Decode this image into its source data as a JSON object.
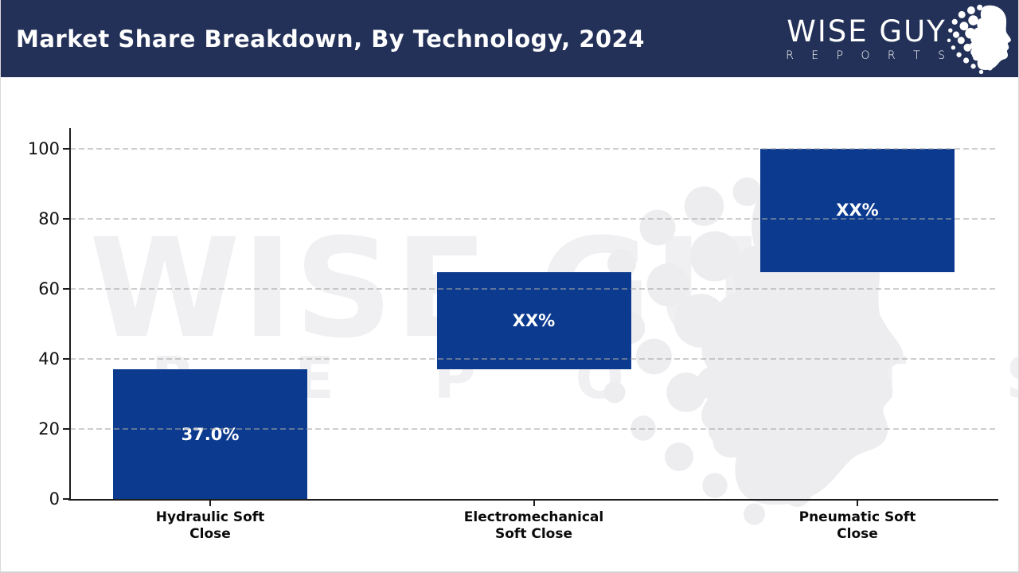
{
  "header": {
    "title": "Market Share Breakdown, By Technology, 2024",
    "logo": {
      "line1": "WISE GUY",
      "line2": "R E P O R T S"
    },
    "bg_color": "#233158"
  },
  "watermark": {
    "line1": "WISE GUY",
    "line2": "R E P O R T S"
  },
  "chart_data": {
    "type": "bar",
    "subtype": "waterfall-stacked-range",
    "title": "Market Share Breakdown, By Technology, 2024",
    "categories": [
      "Hydraulic Soft Close",
      "Electromechanical Soft Close",
      "Pneumatic Soft Close"
    ],
    "category_label_lines": [
      [
        "Hydraulic Soft",
        "Close"
      ],
      [
        "Electromechanical",
        "Soft Close"
      ],
      [
        "Pneumatic Soft",
        "Close"
      ]
    ],
    "segments": [
      {
        "category": "Hydraulic Soft Close",
        "start": 0,
        "end": 37.0,
        "label": "37.0%"
      },
      {
        "category": "Electromechanical Soft Close",
        "start": 37.0,
        "end": 64.8,
        "label": "XX%"
      },
      {
        "category": "Pneumatic Soft Close",
        "start": 64.8,
        "end": 100.0,
        "label": "XX%"
      }
    ],
    "yticks": [
      0,
      20,
      40,
      60,
      80,
      100
    ],
    "ylim": [
      0,
      106
    ],
    "xlabel": "",
    "ylabel": "",
    "bar_color": "#0c3a8e",
    "grid": "horizontal dashed",
    "legend": "none"
  }
}
